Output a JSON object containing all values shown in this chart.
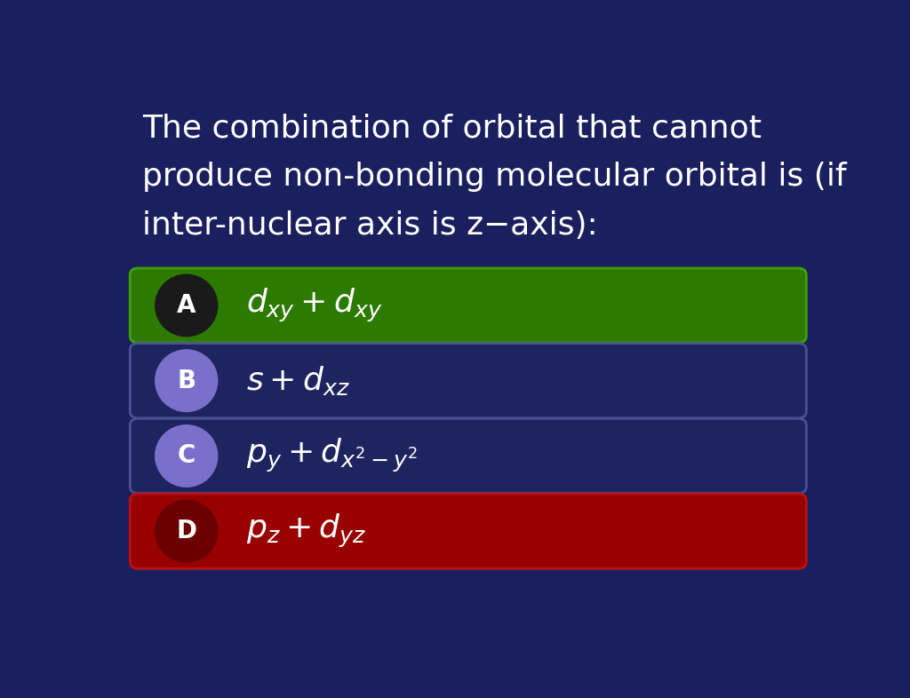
{
  "background_color": "#1a1f5e",
  "title_lines": [
    "The combination of orbital that cannot",
    "produce non-bonding molecular orbital is (if",
    "inter-nuclear axis is z−axis):"
  ],
  "title_color": "#ffffff",
  "title_fontsize": 26,
  "options": [
    {
      "label": "A",
      "label_bg": "#1a1a1a",
      "label_text_color": "#ffffff",
      "box_color": "#2d7a00",
      "box_border_color": "#3fa000",
      "formula": "$\\mathit{d}_{xy} + \\mathit{d}_{xy}$",
      "text_color": "#ffffff"
    },
    {
      "label": "B",
      "label_bg": "#7b6fcc",
      "label_text_color": "#ffffff",
      "box_color": "#1e2460",
      "box_border_color": "#4a5090",
      "formula": "$\\mathit{s} + \\mathit{d}_{xz}$",
      "text_color": "#ffffff"
    },
    {
      "label": "C",
      "label_bg": "#7b6fcc",
      "label_text_color": "#ffffff",
      "box_color": "#1e2460",
      "box_border_color": "#4a5090",
      "formula": "$\\mathit{p}_{y} + \\mathit{d}_{x^2-y^2}$",
      "text_color": "#ffffff"
    },
    {
      "label": "D",
      "label_bg": "#6b0000",
      "label_text_color": "#ffffff",
      "box_color": "#990000",
      "box_border_color": "#bb1111",
      "formula": "$\\mathit{p}_{z} + \\mathit{d}_{yz}$",
      "text_color": "#ffffff"
    }
  ],
  "fig_width": 10.24,
  "fig_height": 7.86,
  "dpi": 100
}
